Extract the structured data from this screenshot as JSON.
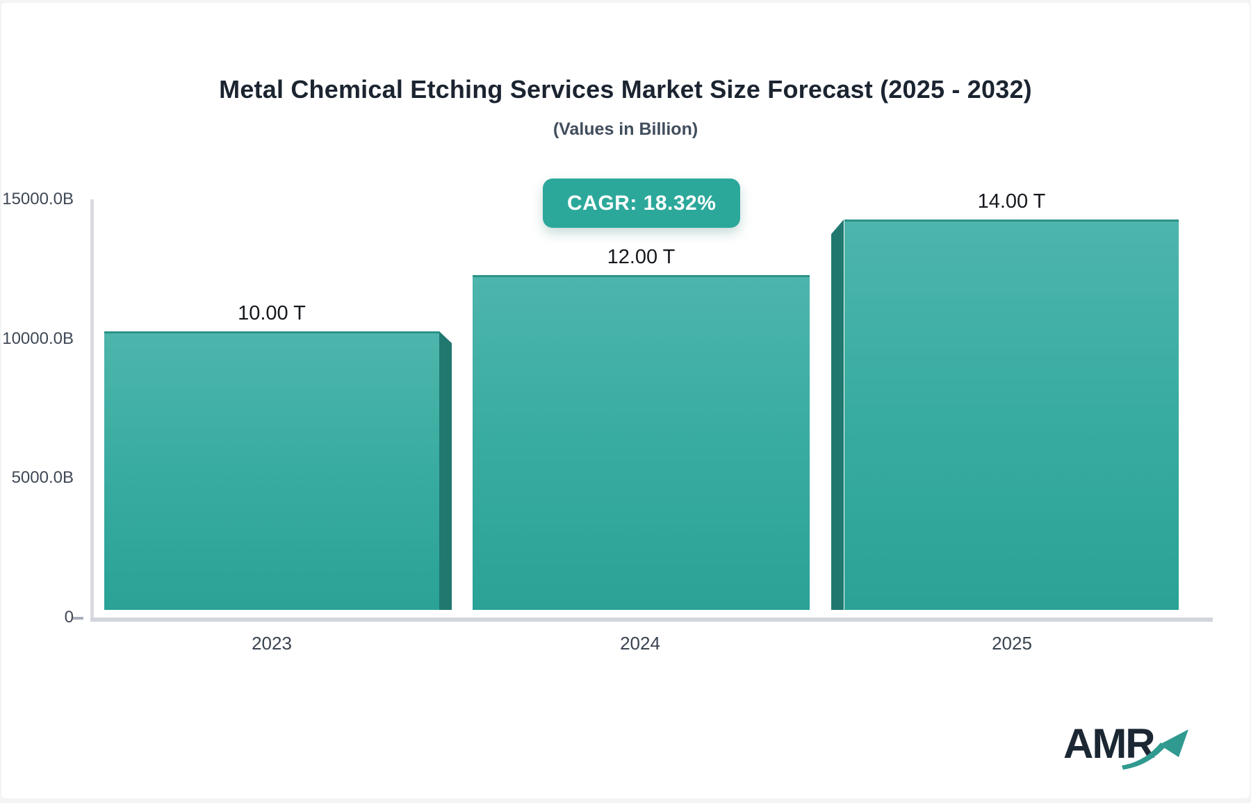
{
  "title": "Metal Chemical Etching Services Market Size Forecast (2025 - 2032)",
  "subtitle": "(Values in Billion)",
  "cagr_badge": "CAGR: 18.32%",
  "logo_text": "AMR",
  "colors": {
    "accent": "#2ca89b",
    "bar_top": "#4db5ac",
    "bar_bottom": "#2aa296",
    "bar_edge": "#2d9289",
    "bar_side": "#20786f",
    "axis_gray": "#d5d8dd",
    "logo_navy": "#1b2733",
    "logo_teal": "#319a90"
  },
  "chart_data": {
    "type": "bar",
    "categories": [
      "2023",
      "2024",
      "2025"
    ],
    "values": [
      10000,
      12000,
      14000
    ],
    "bar_labels": [
      "10.00 T",
      "12.00 T",
      "14.00 T"
    ],
    "title": "Metal Chemical Etching Services Market Size Forecast (2025 - 2032)",
    "subtitle": "(Values in Billion)",
    "xlabel": "",
    "ylabel": "",
    "y_ticks": [
      "15000.0B",
      "10000.0B",
      "5000.0B",
      "0"
    ],
    "y_tick_values": [
      15000,
      10000,
      5000,
      0
    ],
    "ylim": [
      0,
      15000
    ],
    "unit": "Billion",
    "grid": false,
    "legend": false,
    "annotation": "CAGR: 18.32%"
  }
}
